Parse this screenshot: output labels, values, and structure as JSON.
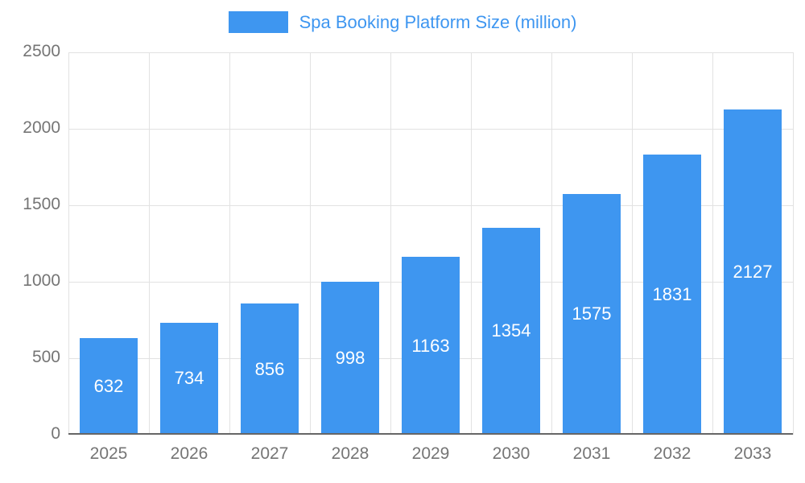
{
  "chart_data": {
    "type": "bar",
    "title": "Spa Booking Platform Size (million)",
    "categories": [
      "2025",
      "2026",
      "2027",
      "2028",
      "2029",
      "2030",
      "2031",
      "2032",
      "2033"
    ],
    "values": [
      632,
      734,
      856,
      998,
      1163,
      1354,
      1575,
      1831,
      2127
    ],
    "xlabel": "",
    "ylabel": "",
    "ylim": [
      0,
      2500
    ],
    "yticks": [
      0,
      500,
      1000,
      1500,
      2000,
      2500
    ],
    "grid": true,
    "legend_position": "top",
    "colors": {
      "bar": "#3E96F0",
      "title_text": "#3E96F0",
      "axis_label": "#757575",
      "gridline": "#E2E2E2",
      "axis_line": "#666666",
      "bar_label": "#FFFFFF",
      "background": "#FFFFFF"
    }
  }
}
